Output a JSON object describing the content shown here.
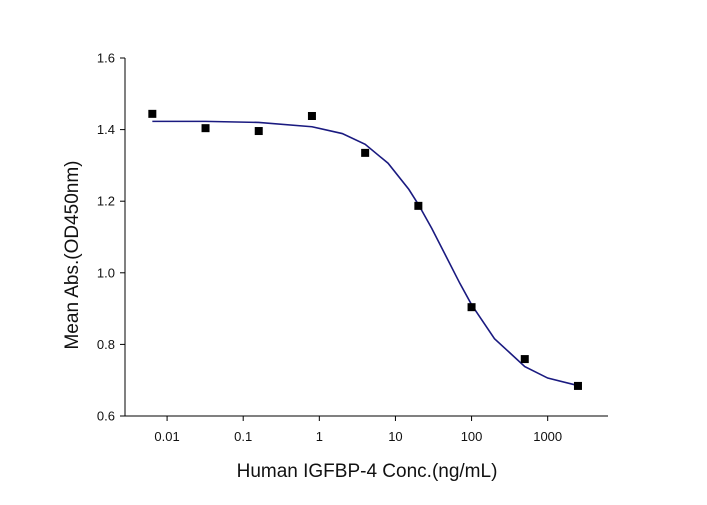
{
  "chart_data": {
    "type": "scatter",
    "x_label": "Human IGFBP-4 Conc.(ng/mL)",
    "y_label": "Mean Abs.(OD450nm)",
    "x_scale": "log",
    "xlim": [
      0.0028,
      6200
    ],
    "xticks": [
      0.01,
      0.1,
      1,
      10,
      100,
      1000
    ],
    "ylim": [
      0.6,
      1.6
    ],
    "yticks": [
      0.6,
      0.8,
      {
        "value": 1.0,
        "label": "1.0"
      },
      1.2,
      1.4,
      1.6
    ],
    "series": [
      {
        "mode": "markers",
        "color": "#000000",
        "x": [
          0.0064,
          0.032,
          0.16,
          0.8,
          4,
          20,
          100,
          500,
          2500
        ],
        "values": [
          1.444,
          1.404,
          1.396,
          1.438,
          1.335,
          1.187,
          0.904,
          0.759,
          0.684
        ]
      },
      {
        "mode": "line",
        "color": "#1a1a80",
        "x": [
          0.0064,
          0.032,
          0.16,
          0.8,
          2,
          4,
          8,
          15,
          20,
          30,
          46,
          70,
          100,
          200,
          500,
          1000,
          2500
        ],
        "values": [
          1.423,
          1.423,
          1.42,
          1.408,
          1.389,
          1.359,
          1.306,
          1.233,
          1.191,
          1.124,
          1.047,
          0.971,
          0.911,
          0.816,
          0.738,
          0.706,
          0.685
        ]
      }
    ]
  }
}
